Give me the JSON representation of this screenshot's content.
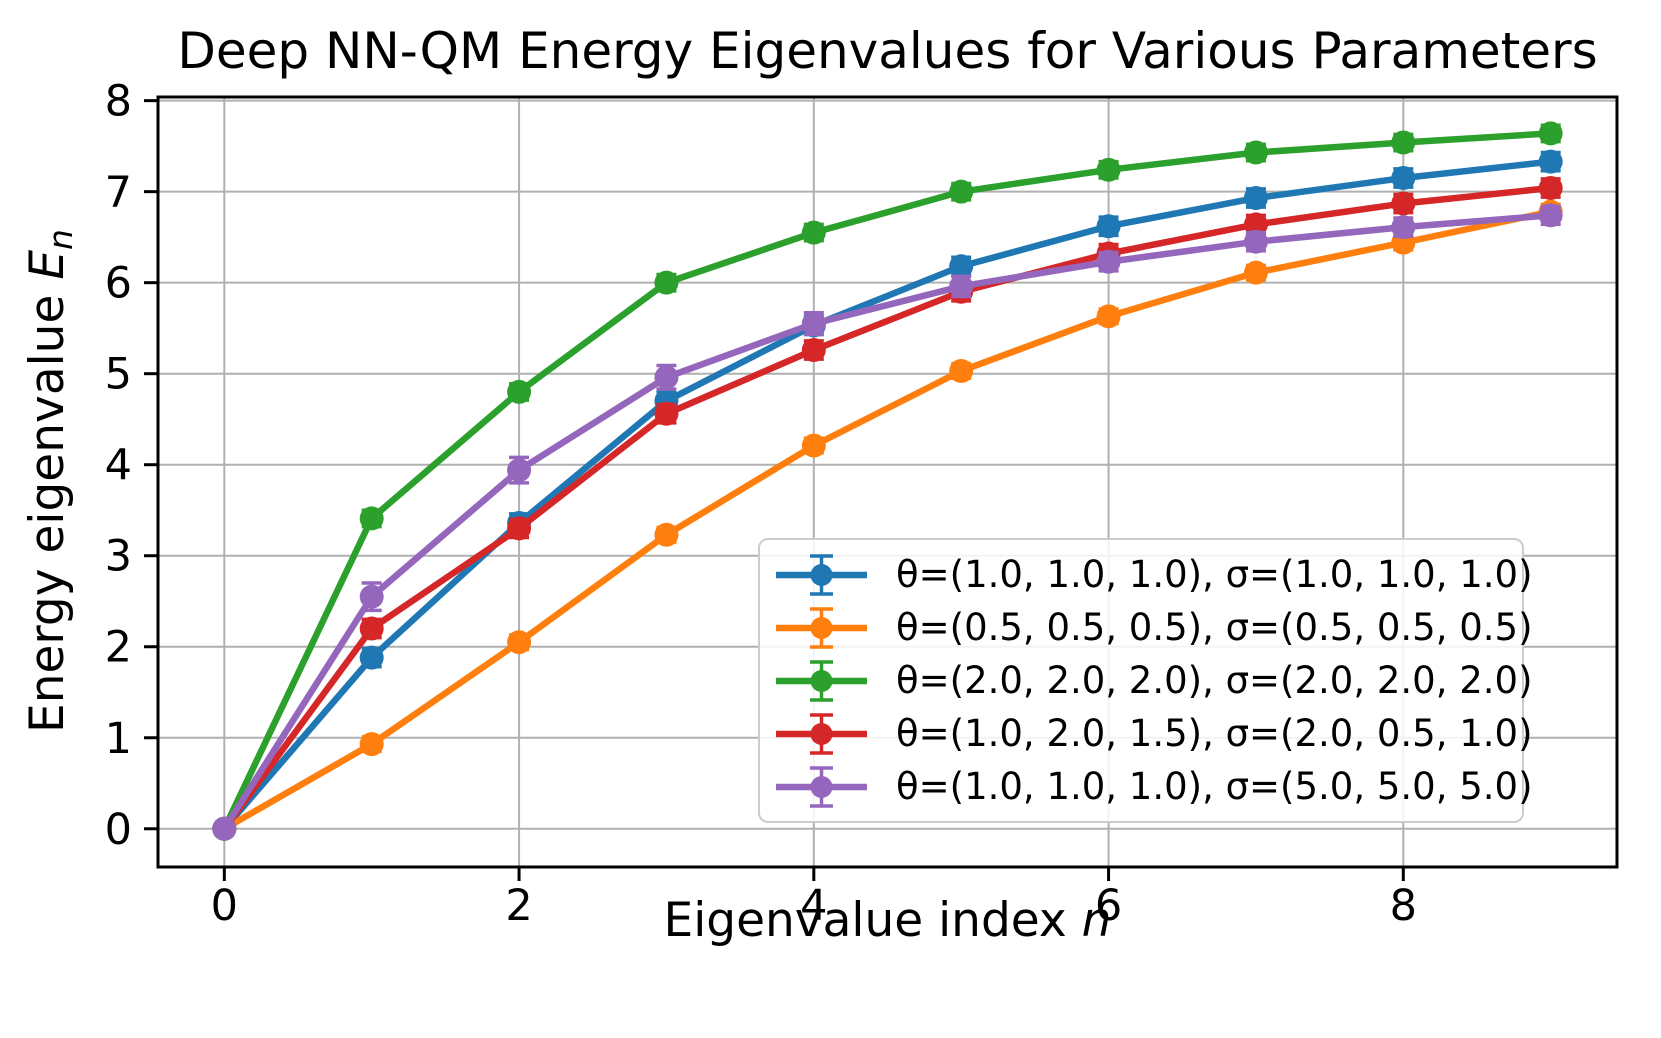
{
  "chart_data": {
    "type": "line",
    "title": "Deep NN-QM Energy Eigenvalues for Various Parameters",
    "xlabel": "Eigenvalue index n",
    "xlabel_parts": {
      "text": "Eigenvalue index",
      "math": "n"
    },
    "ylabel": "Energy eigenvalue En",
    "ylabel_parts": {
      "text": "Energy eigenvalue",
      "math_base": "E",
      "math_sub": "n"
    },
    "x": [
      0,
      1,
      2,
      3,
      4,
      5,
      6,
      7,
      8,
      9
    ],
    "xticks": [
      0,
      2,
      4,
      6,
      8
    ],
    "yticks": [
      0,
      1,
      2,
      3,
      4,
      5,
      6,
      7,
      8
    ],
    "xlim": [
      -0.45,
      9.45
    ],
    "ylim": [
      -0.42,
      8.04
    ],
    "grid": true,
    "legend_position": "lower right inside axes",
    "style": {
      "grid_color": "#b0b0b0",
      "spine_color": "#000000",
      "background": "#ffffff",
      "legend_border": "#cccccc"
    },
    "series": [
      {
        "name": "θ=(1.0, 1.0, 1.0), σ=(1.0, 1.0, 1.0)",
        "color": "#1f77b4",
        "values": [
          0.0,
          1.88,
          3.36,
          4.7,
          5.53,
          6.18,
          6.62,
          6.93,
          7.15,
          7.33
        ],
        "yerr": [
          0.02,
          0.1,
          0.1,
          0.1,
          0.1,
          0.1,
          0.1,
          0.1,
          0.1,
          0.1
        ]
      },
      {
        "name": "θ=(0.5, 0.5, 0.5), σ=(0.5, 0.5, 0.5)",
        "color": "#ff7f0e",
        "values": [
          0.0,
          0.93,
          2.05,
          3.23,
          4.21,
          5.03,
          5.63,
          6.11,
          6.44,
          6.78
        ],
        "yerr": [
          0.02,
          0.08,
          0.08,
          0.08,
          0.08,
          0.08,
          0.08,
          0.08,
          0.08,
          0.08
        ]
      },
      {
        "name": "θ=(2.0, 2.0, 2.0), σ=(2.0, 2.0, 2.0)",
        "color": "#2ca02c",
        "values": [
          0.0,
          3.41,
          4.8,
          6.0,
          6.55,
          7.0,
          7.24,
          7.43,
          7.54,
          7.64
        ],
        "yerr": [
          0.02,
          0.09,
          0.09,
          0.09,
          0.09,
          0.09,
          0.09,
          0.09,
          0.09,
          0.09
        ]
      },
      {
        "name": "θ=(1.0, 2.0, 1.5), σ=(2.0, 0.5, 1.0)",
        "color": "#d62728",
        "values": [
          0.0,
          2.2,
          3.3,
          4.56,
          5.26,
          5.9,
          6.32,
          6.64,
          6.87,
          7.04
        ],
        "yerr": [
          0.02,
          0.1,
          0.1,
          0.1,
          0.1,
          0.1,
          0.1,
          0.1,
          0.1,
          0.1
        ]
      },
      {
        "name": "θ=(1.0, 1.0, 1.0), σ=(5.0, 5.0, 5.0)",
        "color": "#9467bd",
        "values": [
          0.0,
          2.55,
          3.94,
          4.96,
          5.55,
          5.96,
          6.23,
          6.45,
          6.61,
          6.74
        ],
        "yerr": [
          0.03,
          0.15,
          0.14,
          0.13,
          0.12,
          0.11,
          0.1,
          0.1,
          0.1,
          0.1
        ]
      }
    ]
  }
}
